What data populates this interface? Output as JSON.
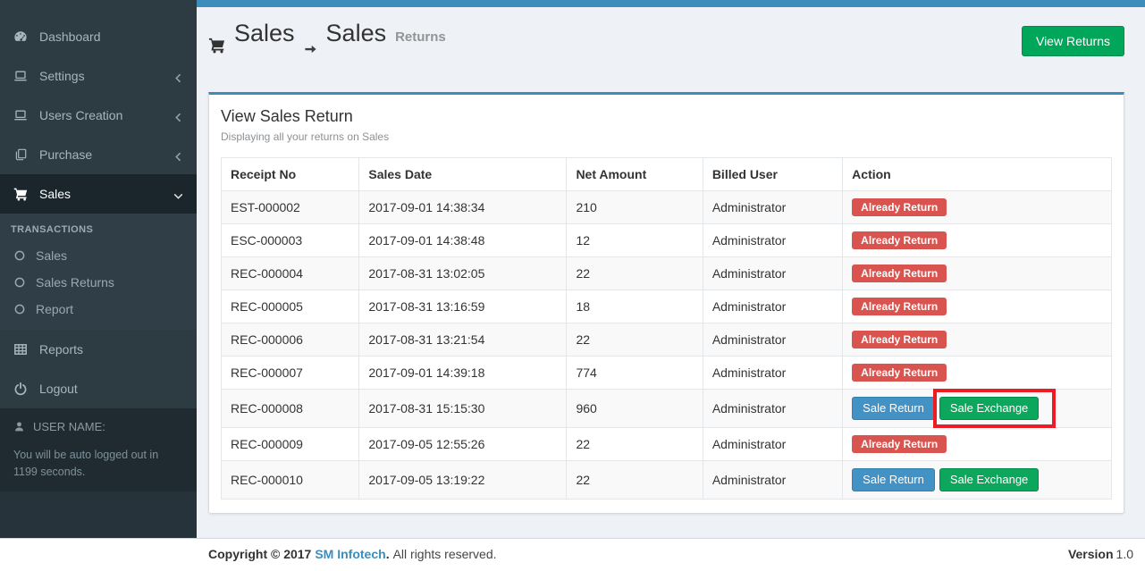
{
  "colors": {
    "accent_blue": "#3c8dbc",
    "success_green": "#00a65a",
    "danger_red": "#d9534f",
    "highlight_red": "#ed1c24"
  },
  "sidebar": {
    "items": [
      {
        "label": "Dashboard",
        "icon": "dashboard-icon"
      },
      {
        "label": "Settings",
        "icon": "laptop-icon",
        "chevron": "left"
      },
      {
        "label": "Users Creation",
        "icon": "laptop-icon",
        "chevron": "left"
      },
      {
        "label": "Purchase",
        "icon": "copy-icon",
        "chevron": "left"
      },
      {
        "label": "Sales",
        "icon": "cart-icon",
        "chevron": "down",
        "active": true
      }
    ],
    "section_label": "TRANSACTIONS",
    "submenu": [
      {
        "label": "Sales"
      },
      {
        "label": "Sales Returns"
      },
      {
        "label": "Report"
      }
    ],
    "items_lower": [
      {
        "label": "Reports",
        "icon": "table-icon"
      },
      {
        "label": "Logout",
        "icon": "power-icon"
      }
    ],
    "user_label": "USER NAME:",
    "auto_logout_text": "You will be auto logged out in 1199 seconds."
  },
  "header": {
    "title_primary": "Sales",
    "title_secondary": "Sales",
    "title_sub": "Returns",
    "view_returns_label": "View Returns"
  },
  "panel": {
    "title": "View Sales Return",
    "subtitle": "Displaying all your returns on Sales"
  },
  "table": {
    "columns": [
      "Receipt No",
      "Sales Date",
      "Net Amount",
      "Billed User",
      "Action"
    ],
    "rows": [
      {
        "receipt_no": "EST-000002",
        "sales_date": "2017-09-01 14:38:34",
        "net_amount": "210",
        "billed_user": "Administrator",
        "actions": [
          {
            "label": "Already Return",
            "type": "danger"
          }
        ]
      },
      {
        "receipt_no": "ESC-000003",
        "sales_date": "2017-09-01 14:38:48",
        "net_amount": "12",
        "billed_user": "Administrator",
        "actions": [
          {
            "label": "Already Return",
            "type": "danger"
          }
        ]
      },
      {
        "receipt_no": "REC-000004",
        "sales_date": "2017-08-31 13:02:05",
        "net_amount": "22",
        "billed_user": "Administrator",
        "actions": [
          {
            "label": "Already Return",
            "type": "danger"
          }
        ]
      },
      {
        "receipt_no": "REC-000005",
        "sales_date": "2017-08-31 13:16:59",
        "net_amount": "18",
        "billed_user": "Administrator",
        "actions": [
          {
            "label": "Already Return",
            "type": "danger"
          }
        ]
      },
      {
        "receipt_no": "REC-000006",
        "sales_date": "2017-08-31 13:21:54",
        "net_amount": "22",
        "billed_user": "Administrator",
        "actions": [
          {
            "label": "Already Return",
            "type": "danger"
          }
        ]
      },
      {
        "receipt_no": "REC-000007",
        "sales_date": "2017-09-01 14:39:18",
        "net_amount": "774",
        "billed_user": "Administrator",
        "actions": [
          {
            "label": "Already Return",
            "type": "danger"
          }
        ]
      },
      {
        "receipt_no": "REC-000008",
        "sales_date": "2017-08-31 15:15:30",
        "net_amount": "960",
        "billed_user": "Administrator",
        "actions": [
          {
            "label": "Sale Return",
            "type": "primary"
          },
          {
            "label": "Sale Exchange",
            "type": "success",
            "highlighted": true
          }
        ]
      },
      {
        "receipt_no": "REC-000009",
        "sales_date": "2017-09-05 12:55:26",
        "net_amount": "22",
        "billed_user": "Administrator",
        "actions": [
          {
            "label": "Already Return",
            "type": "danger"
          }
        ]
      },
      {
        "receipt_no": "REC-000010",
        "sales_date": "2017-09-05 13:19:22",
        "net_amount": "22",
        "billed_user": "Administrator",
        "actions": [
          {
            "label": "Sale Return",
            "type": "primary"
          },
          {
            "label": "Sale Exchange",
            "type": "success"
          }
        ]
      }
    ]
  },
  "footer": {
    "copyright_bold": "Copyright © 2017",
    "company_link": "SM Infotech",
    "copyright_dot": ".",
    "copyright_rest": "All rights reserved.",
    "version_label": "Version",
    "version_value": "1.0"
  }
}
